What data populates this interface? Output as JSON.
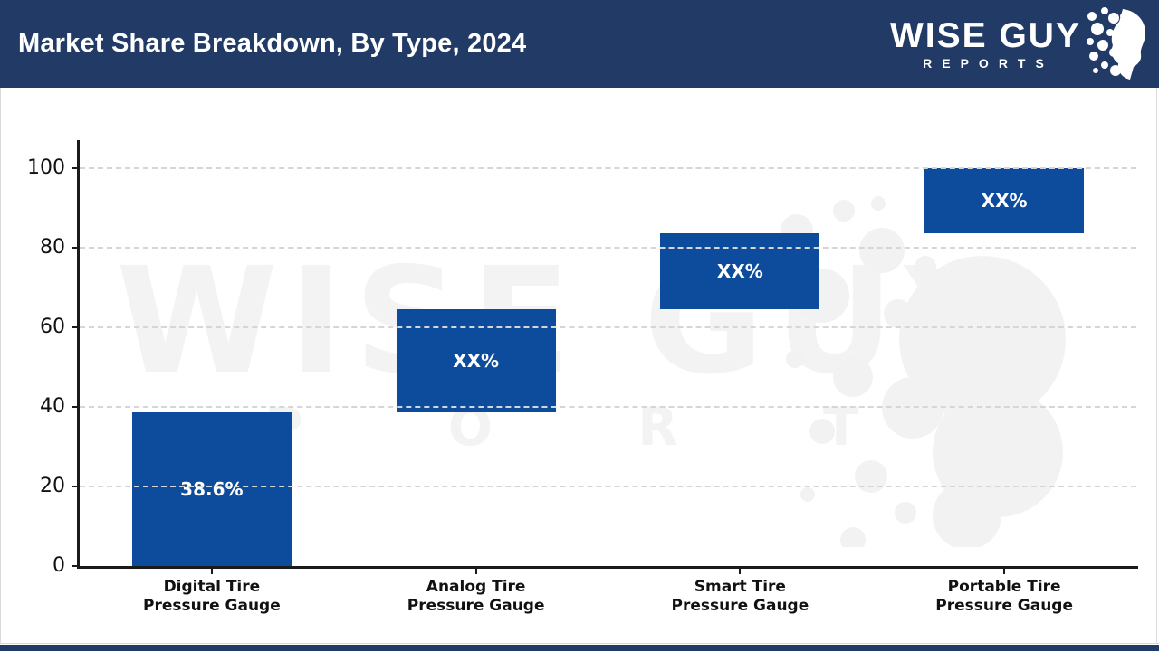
{
  "header": {
    "title": "Market Share Breakdown, By Type, 2024",
    "bg_color": "#213A66",
    "logo": {
      "name": "WISE GUY",
      "tagline": "REPORTS"
    }
  },
  "watermark": {
    "line1": "WISE GUY",
    "line2": "P O R T S"
  },
  "chart_data": {
    "type": "bar",
    "subtype": "stacked-waterfall-segments",
    "title": "Market Share Breakdown, By Type, 2024",
    "categories": [
      "Digital Tire Pressure Gauge",
      "Analog Tire Pressure Gauge",
      "Smart Tire Pressure Gauge",
      "Portable Tire Pressure Gauge"
    ],
    "category_lines": [
      [
        "Digital Tire",
        "Pressure Gauge"
      ],
      [
        "Analog Tire",
        "Pressure Gauge"
      ],
      [
        "Smart Tire",
        "Pressure Gauge"
      ],
      [
        "Portable Tire",
        "Pressure Gauge"
      ]
    ],
    "segments": [
      {
        "category": "Digital Tire Pressure Gauge",
        "label": "38.6%",
        "start": 0,
        "end": 38.6
      },
      {
        "category": "Analog Tire Pressure Gauge",
        "label": "XX%",
        "start": 38.6,
        "end": 64.5
      },
      {
        "category": "Smart Tire Pressure Gauge",
        "label": "XX%",
        "start": 64.5,
        "end": 83.6
      },
      {
        "category": "Portable Tire Pressure Gauge",
        "label": "XX%",
        "start": 83.6,
        "end": 100
      }
    ],
    "xlabel": "",
    "ylabel": "",
    "ylim": [
      0,
      100
    ],
    "yticks": [
      0,
      20,
      40,
      60,
      80,
      100
    ],
    "grid": {
      "horizontal": true,
      "style": "dashed",
      "color": "#d6d6d6",
      "drawn_on_top_of_bars": true
    },
    "legend": "none",
    "bar_color": "#0D4C9D",
    "bar_label_color": "#ffffff",
    "axis_color": "#1a1a1a"
  }
}
